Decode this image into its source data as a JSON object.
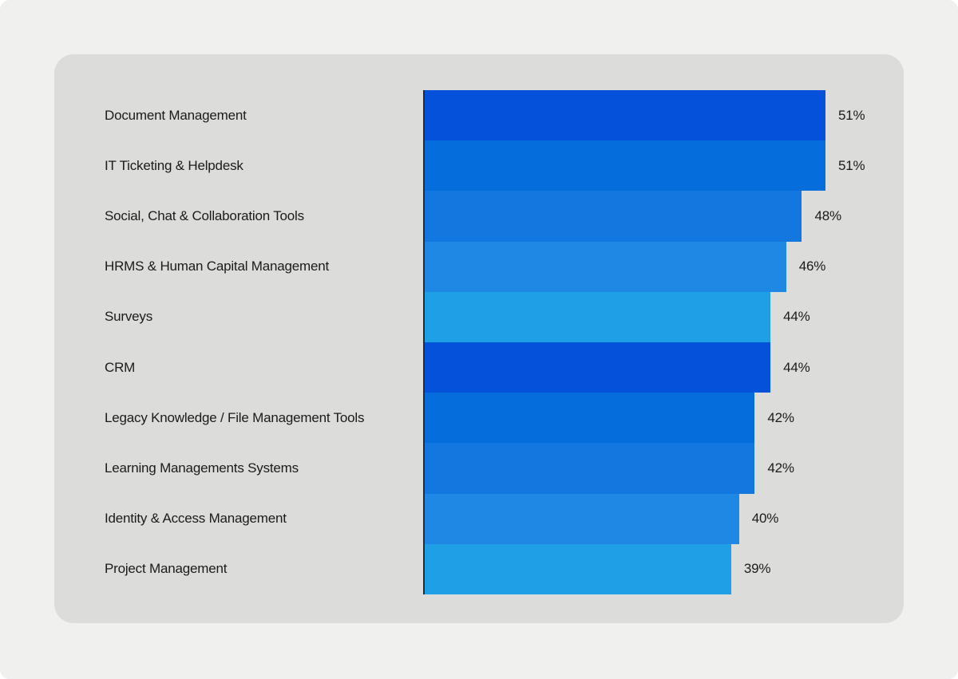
{
  "chart_data": {
    "type": "bar",
    "orientation": "horizontal",
    "title": "",
    "xlabel": "",
    "ylabel": "",
    "xlim": [
      0,
      51
    ],
    "grid": false,
    "legend": false,
    "value_suffix": "%",
    "categories": [
      "Document Management",
      "IT Ticketing & Helpdesk",
      "Social, Chat & Collaboration Tools",
      "HRMS & Human Capital Management",
      "Surveys",
      "CRM",
      "Legacy Knowledge / File Management Tools",
      "Learning Managements Systems",
      "Identity & Access Management",
      "Project Management"
    ],
    "values": [
      51,
      51,
      48,
      46,
      44,
      44,
      42,
      42,
      40,
      39
    ],
    "value_labels": [
      "51%",
      "51%",
      "48%",
      "46%",
      "44%",
      "44%",
      "42%",
      "42%",
      "40%",
      "39%"
    ],
    "palette": [
      "#0452d9",
      "#066edc",
      "#1377e0",
      "#1f88e4",
      "#1f9fe6"
    ],
    "colors": {
      "axis_line": "#2b2b2b",
      "label_text": "#1b1b1b",
      "card_background": "#dcdcda",
      "page_background": "#f0f0ee"
    }
  }
}
